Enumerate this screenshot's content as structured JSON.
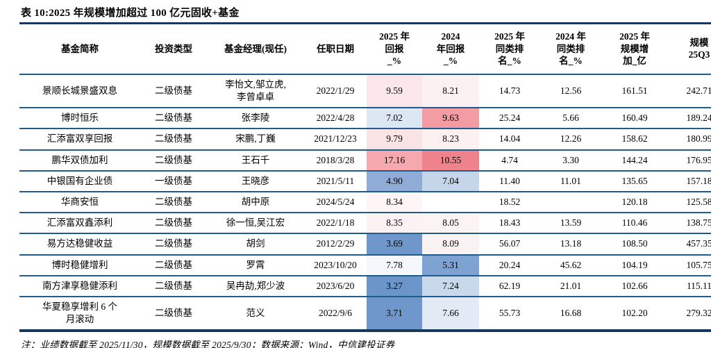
{
  "title": "表 10:2025 年规模增加超过 100 亿元固收+基金",
  "note": "注：业绩数据截至 2025/11/30，规模数据截至 2025/9/30；数据来源：Wind，中信建投证券",
  "colors": {
    "border_thick": "#17375E",
    "border_thin": "#1F5B8E",
    "heat_red_strong": "#EF828A",
    "heat_red_mid": "#F5A9AF",
    "heat_blue_strong": "#6C95CA",
    "heat_blue_light": "#C5D6EA"
  },
  "table": {
    "headers": [
      "基金简称",
      "投资类型",
      "基金经理(现任)",
      "任职日期",
      "2025 年\n回报\n_%",
      "2024\n年回报\n_%",
      "2025 年\n同类排\n名_%",
      "2024 年\n同类排\n名_%",
      "2025 年\n规模增\n加_亿",
      "规模\n25Q3"
    ],
    "rows": [
      {
        "cells": [
          "景顺长城景盛双息",
          "二级债基",
          "李怡文,邹立虎,\n李曾卓卓",
          "2022/1/29",
          "9.59",
          "8.21",
          "14.73",
          "12.56",
          "161.51",
          "242.71"
        ],
        "bg": {
          "4": "#FBE7E9",
          "5": "#FCF1F2"
        }
      },
      {
        "cells": [
          "博时恒乐",
          "二级债基",
          "张李陵",
          "2022/4/28",
          "7.02",
          "9.63",
          "25.24",
          "5.66",
          "160.49",
          "189.24"
        ],
        "bg": {
          "4": "#DCE7F3",
          "5": "#F49CA3"
        }
      },
      {
        "cells": [
          "汇添富双享回报",
          "二级债基",
          "宋鹏,丁巍",
          "2021/12/23",
          "9.79",
          "8.23",
          "14.04",
          "12.26",
          "158.62",
          "180.99"
        ],
        "bg": {
          "4": "#FAE3E5",
          "5": "#FCF0F1"
        }
      },
      {
        "cells": [
          "鹏华双债加利",
          "二级债基",
          "王石千",
          "2018/3/28",
          "17.16",
          "10.55",
          "4.74",
          "3.30",
          "144.24",
          "176.95"
        ],
        "bg": {
          "4": "#F5A9AF",
          "5": "#EF828A"
        }
      },
      {
        "cells": [
          "中银国有企业债",
          "一级债基",
          "王晓彦",
          "2021/5/11",
          "4.90",
          "7.04",
          "11.40",
          "11.01",
          "135.65",
          "157.18"
        ],
        "bg": {
          "4": "#8EACD5",
          "5": "#C5D6EA"
        }
      },
      {
        "cells": [
          "华商安恒",
          "二级债基",
          "胡中原",
          "2024/5/24",
          "8.34",
          "",
          "18.52",
          "",
          "120.18",
          "125.58"
        ],
        "bg": {
          "4": "#FDF5F6"
        }
      },
      {
        "cells": [
          "汇添富双鑫添利",
          "二级债基",
          "徐一恒,吴江宏",
          "2022/1/18",
          "8.35",
          "8.05",
          "18.43",
          "13.59",
          "110.46",
          "138.75"
        ],
        "bg": {
          "4": "#FCF2F3",
          "5": "#FBF3F4"
        }
      },
      {
        "cells": [
          "易方达稳健收益",
          "二级债基",
          "胡剑",
          "2012/2/29",
          "3.69",
          "8.09",
          "56.07",
          "13.18",
          "108.50",
          "457.35"
        ],
        "bg": {
          "4": "#6F97CB",
          "5": "#FAF2F3"
        }
      },
      {
        "cells": [
          "博时稳健增利",
          "二级债基",
          "罗霄",
          "2023/10/20",
          "7.78",
          "5.31",
          "20.24",
          "45.62",
          "104.19",
          "105.75"
        ],
        "bg": {
          "4": "#F4F8FB",
          "5": "#7EA2D1"
        }
      },
      {
        "cells": [
          "南方津享稳健添利",
          "二级债基",
          "吴冉劼,郑少波",
          "2023/6/20",
          "3.27",
          "7.24",
          "62.19",
          "21.01",
          "102.66",
          "115.11"
        ],
        "bg": {
          "4": "#6C95CA",
          "5": "#C9D9EC"
        }
      },
      {
        "cells": [
          "华夏稳享增利 6 个\n月滚动",
          "二级债基",
          "范义",
          "2022/9/6",
          "3.71",
          "7.66",
          "55.73",
          "16.68",
          "102.20",
          "279.32"
        ],
        "bg": {
          "4": "#7097CB",
          "5": "#E2EAF5"
        }
      }
    ]
  }
}
